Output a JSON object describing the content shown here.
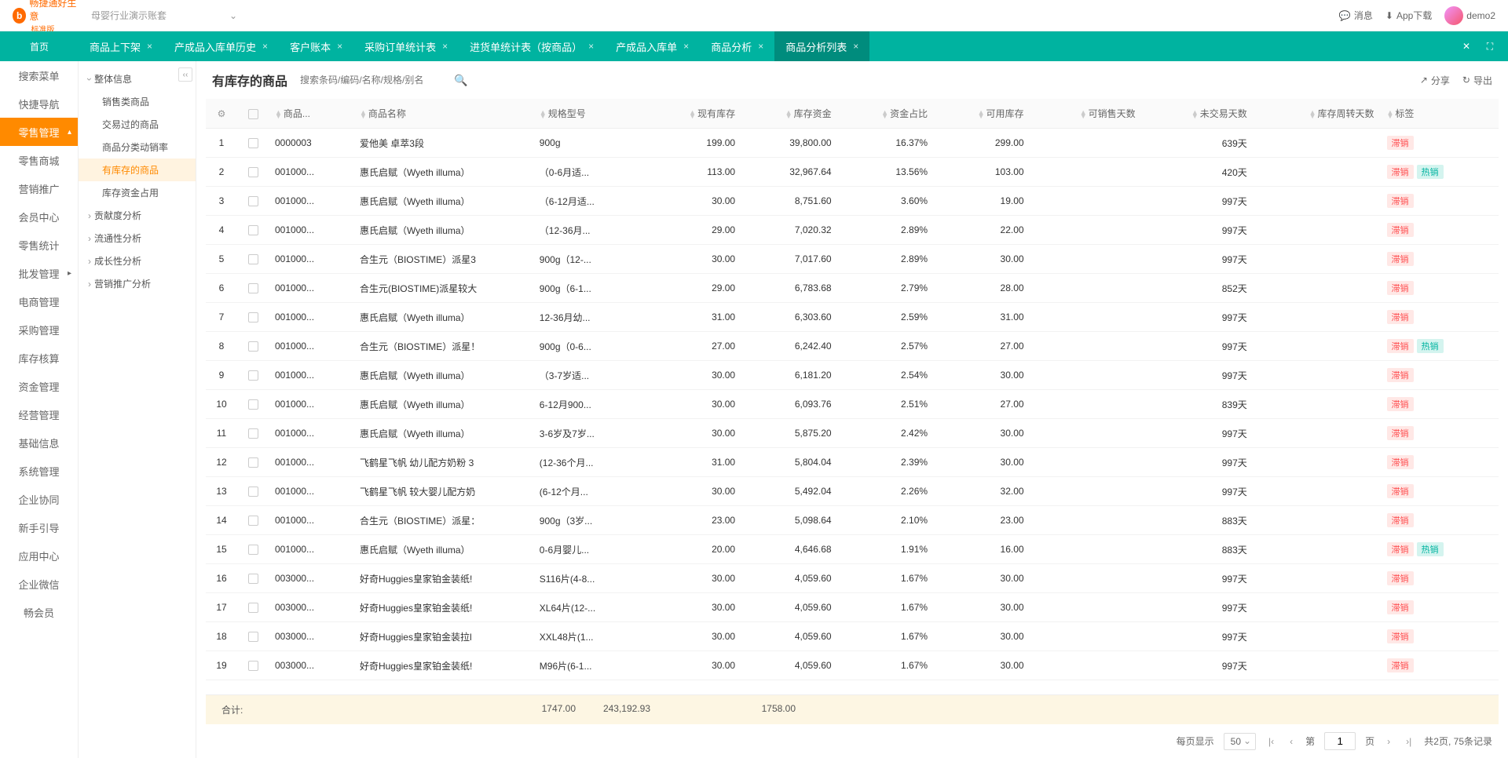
{
  "header": {
    "logo_text": "畅捷通好生意",
    "logo_badge": "标准版",
    "account": "母婴行业演示账套",
    "msg": "消息",
    "app_download": "App下载",
    "user": "demo2"
  },
  "tabs": {
    "home": "首页",
    "list": [
      {
        "label": "商品上下架"
      },
      {
        "label": "产成品入库单历史"
      },
      {
        "label": "客户账本"
      },
      {
        "label": "采购订单统计表"
      },
      {
        "label": "进货单统计表（按商品）"
      },
      {
        "label": "产成品入库单"
      },
      {
        "label": "商品分析"
      },
      {
        "label": "商品分析列表",
        "active": true
      }
    ]
  },
  "left_nav": [
    {
      "label": "搜索菜单"
    },
    {
      "label": "快捷导航"
    },
    {
      "label": "零售管理",
      "active": true,
      "expand": true
    },
    {
      "label": "零售商城"
    },
    {
      "label": "营销推广"
    },
    {
      "label": "会员中心"
    },
    {
      "label": "零售统计"
    },
    {
      "label": "批发管理",
      "expand": true
    },
    {
      "label": "电商管理"
    },
    {
      "label": "采购管理"
    },
    {
      "label": "库存核算"
    },
    {
      "label": "资金管理"
    },
    {
      "label": "经营管理"
    },
    {
      "label": "基础信息"
    },
    {
      "label": "系统管理"
    },
    {
      "label": "企业协同"
    },
    {
      "label": "新手引导"
    },
    {
      "label": "应用中心"
    },
    {
      "label": "企业微信"
    },
    {
      "label": "畅会员"
    }
  ],
  "tree": [
    {
      "label": "整体信息",
      "type": "parent",
      "expanded": true
    },
    {
      "label": "销售类商品",
      "type": "child"
    },
    {
      "label": "交易过的商品",
      "type": "child"
    },
    {
      "label": "商品分类动销率",
      "type": "child"
    },
    {
      "label": "有库存的商品",
      "type": "child",
      "active": true
    },
    {
      "label": "库存资金占用",
      "type": "child"
    },
    {
      "label": "贡献度分析",
      "type": "parent",
      "expanded": false
    },
    {
      "label": "流通性分析",
      "type": "parent",
      "expanded": false
    },
    {
      "label": "成长性分析",
      "type": "parent",
      "expanded": false
    },
    {
      "label": "营销推广分析",
      "type": "parent",
      "expanded": false
    }
  ],
  "content": {
    "title": "有库存的商品",
    "search_placeholder": "搜索条码/编码/名称/规格/别名",
    "share": "分享",
    "export": "导出"
  },
  "columns": [
    "",
    "",
    "商品...",
    "商品名称",
    "规格型号",
    "现有库存",
    "库存资金",
    "资金占比",
    "可用库存",
    "可销售天数",
    "未交易天数",
    "库存周转天数",
    "标签"
  ],
  "rows": [
    {
      "idx": "1",
      "code": "0000003",
      "name": "爱他美 卓萃3段",
      "spec": "900g",
      "stock": "199.00",
      "fund": "39,800.00",
      "ratio": "16.37%",
      "avail": "299.00",
      "sale": "",
      "notrade": "639天",
      "turn": "",
      "tags": [
        "滞销"
      ]
    },
    {
      "idx": "2",
      "code": "001000...",
      "name": "惠氏启赋（Wyeth illuma）",
      "spec": "（0-6月适...",
      "stock": "113.00",
      "fund": "32,967.64",
      "ratio": "13.56%",
      "avail": "103.00",
      "sale": "",
      "notrade": "420天",
      "turn": "",
      "tags": [
        "滞销",
        "热销"
      ]
    },
    {
      "idx": "3",
      "code": "001000...",
      "name": "惠氏启赋（Wyeth illuma）",
      "spec": "（6-12月适...",
      "stock": "30.00",
      "fund": "8,751.60",
      "ratio": "3.60%",
      "avail": "19.00",
      "sale": "",
      "notrade": "997天",
      "turn": "",
      "tags": [
        "滞销"
      ]
    },
    {
      "idx": "4",
      "code": "001000...",
      "name": "惠氏启赋（Wyeth illuma）",
      "spec": "（12-36月...",
      "stock": "29.00",
      "fund": "7,020.32",
      "ratio": "2.89%",
      "avail": "22.00",
      "sale": "",
      "notrade": "997天",
      "turn": "",
      "tags": [
        "滞销"
      ]
    },
    {
      "idx": "5",
      "code": "001000...",
      "name": "合生元（BIOSTIME）派星3",
      "spec": "900g（12-...",
      "stock": "30.00",
      "fund": "7,017.60",
      "ratio": "2.89%",
      "avail": "30.00",
      "sale": "",
      "notrade": "997天",
      "turn": "",
      "tags": [
        "滞销"
      ]
    },
    {
      "idx": "6",
      "code": "001000...",
      "name": "合生元(BIOSTIME)派星较大",
      "spec": "900g（6-1...",
      "stock": "29.00",
      "fund": "6,783.68",
      "ratio": "2.79%",
      "avail": "28.00",
      "sale": "",
      "notrade": "852天",
      "turn": "",
      "tags": [
        "滞销"
      ]
    },
    {
      "idx": "7",
      "code": "001000...",
      "name": "惠氏启赋（Wyeth illuma）",
      "spec": "12-36月幼...",
      "stock": "31.00",
      "fund": "6,303.60",
      "ratio": "2.59%",
      "avail": "31.00",
      "sale": "",
      "notrade": "997天",
      "turn": "",
      "tags": [
        "滞销"
      ]
    },
    {
      "idx": "8",
      "code": "001000...",
      "name": "合生元（BIOSTIME）派星！",
      "spec": "900g（0-6...",
      "stock": "27.00",
      "fund": "6,242.40",
      "ratio": "2.57%",
      "avail": "27.00",
      "sale": "",
      "notrade": "997天",
      "turn": "",
      "tags": [
        "滞销",
        "热销"
      ]
    },
    {
      "idx": "9",
      "code": "001000...",
      "name": "惠氏启赋（Wyeth illuma）",
      "spec": "（3-7岁适...",
      "stock": "30.00",
      "fund": "6,181.20",
      "ratio": "2.54%",
      "avail": "30.00",
      "sale": "",
      "notrade": "997天",
      "turn": "",
      "tags": [
        "滞销"
      ]
    },
    {
      "idx": "10",
      "code": "001000...",
      "name": "惠氏启赋（Wyeth illuma）",
      "spec": "6-12月900...",
      "stock": "30.00",
      "fund": "6,093.76",
      "ratio": "2.51%",
      "avail": "27.00",
      "sale": "",
      "notrade": "839天",
      "turn": "",
      "tags": [
        "滞销"
      ]
    },
    {
      "idx": "11",
      "code": "001000...",
      "name": "惠氏启赋（Wyeth illuma）",
      "spec": "3-6岁及7岁...",
      "stock": "30.00",
      "fund": "5,875.20",
      "ratio": "2.42%",
      "avail": "30.00",
      "sale": "",
      "notrade": "997天",
      "turn": "",
      "tags": [
        "滞销"
      ]
    },
    {
      "idx": "12",
      "code": "001000...",
      "name": "飞鹤星飞帆 幼儿配方奶粉 3",
      "spec": "(12-36个月...",
      "stock": "31.00",
      "fund": "5,804.04",
      "ratio": "2.39%",
      "avail": "30.00",
      "sale": "",
      "notrade": "997天",
      "turn": "",
      "tags": [
        "滞销"
      ]
    },
    {
      "idx": "13",
      "code": "001000...",
      "name": "飞鹤星飞帆 较大婴儿配方奶",
      "spec": "(6-12个月...",
      "stock": "30.00",
      "fund": "5,492.04",
      "ratio": "2.26%",
      "avail": "32.00",
      "sale": "",
      "notrade": "997天",
      "turn": "",
      "tags": [
        "滞销"
      ]
    },
    {
      "idx": "14",
      "code": "001000...",
      "name": "合生元（BIOSTIME）派星：",
      "spec": "900g（3岁...",
      "stock": "23.00",
      "fund": "5,098.64",
      "ratio": "2.10%",
      "avail": "23.00",
      "sale": "",
      "notrade": "883天",
      "turn": "",
      "tags": [
        "滞销"
      ]
    },
    {
      "idx": "15",
      "code": "001000...",
      "name": "惠氏启赋（Wyeth illuma）",
      "spec": "0-6月婴儿...",
      "stock": "20.00",
      "fund": "4,646.68",
      "ratio": "1.91%",
      "avail": "16.00",
      "sale": "",
      "notrade": "883天",
      "turn": "",
      "tags": [
        "滞销",
        "热销"
      ]
    },
    {
      "idx": "16",
      "code": "003000...",
      "name": "好奇Huggies皇家铂金装纸!",
      "spec": "S116片(4-8...",
      "stock": "30.00",
      "fund": "4,059.60",
      "ratio": "1.67%",
      "avail": "30.00",
      "sale": "",
      "notrade": "997天",
      "turn": "",
      "tags": [
        "滞销"
      ]
    },
    {
      "idx": "17",
      "code": "003000...",
      "name": "好奇Huggies皇家铂金装纸!",
      "spec": "XL64片(12-...",
      "stock": "30.00",
      "fund": "4,059.60",
      "ratio": "1.67%",
      "avail": "30.00",
      "sale": "",
      "notrade": "997天",
      "turn": "",
      "tags": [
        "滞销"
      ]
    },
    {
      "idx": "18",
      "code": "003000...",
      "name": "好奇Huggies皇家铂金装拉l",
      "spec": "XXL48片(1...",
      "stock": "30.00",
      "fund": "4,059.60",
      "ratio": "1.67%",
      "avail": "30.00",
      "sale": "",
      "notrade": "997天",
      "turn": "",
      "tags": [
        "滞销"
      ]
    },
    {
      "idx": "19",
      "code": "003000...",
      "name": "好奇Huggies皇家铂金装纸!",
      "spec": "M96片(6-1...",
      "stock": "30.00",
      "fund": "4,059.60",
      "ratio": "1.67%",
      "avail": "30.00",
      "sale": "",
      "notrade": "997天",
      "turn": "",
      "tags": [
        "滞销"
      ]
    }
  ],
  "summary": {
    "label": "合计:",
    "stock": "1747.00",
    "fund": "243,192.93",
    "avail": "1758.00"
  },
  "pagination": {
    "per_page_label": "每页显示",
    "per_page": "50",
    "page_label_pre": "第",
    "page": "1",
    "page_label_post": "页",
    "total": "共2页, 75条记录"
  }
}
